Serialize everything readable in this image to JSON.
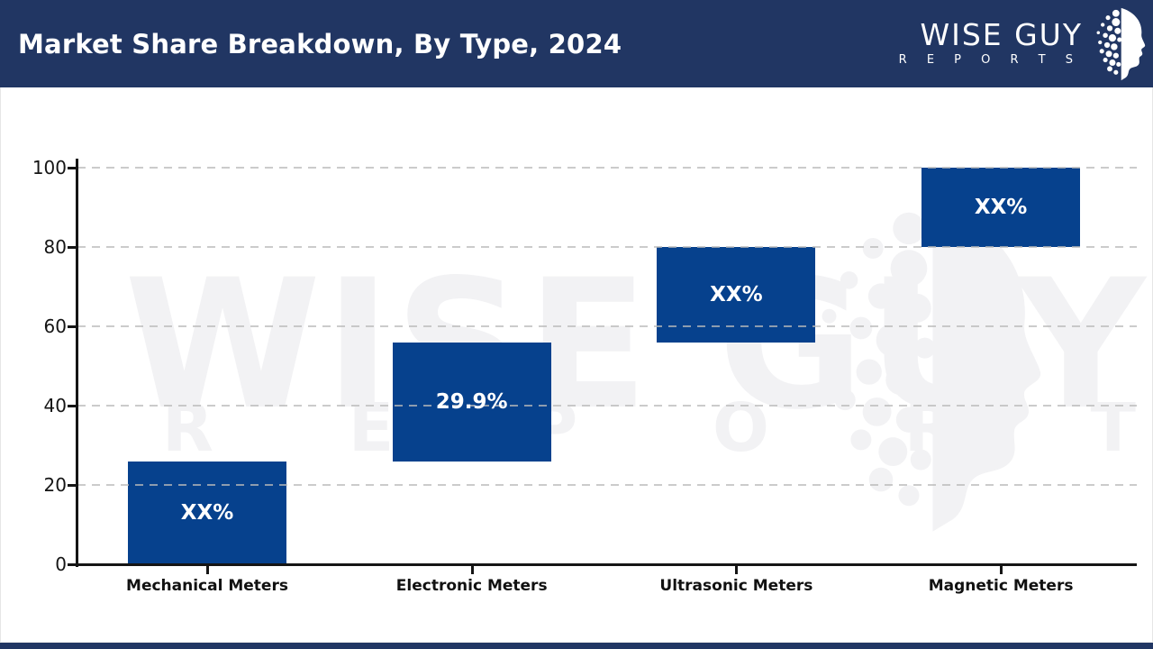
{
  "header": {
    "title": "Market Share Breakdown, By Type, 2024",
    "logo": {
      "name": "Wise Guy Reports",
      "line1": "WISE GUY",
      "line2": "R E P O R T S"
    }
  },
  "watermark": {
    "line1": "WISE GUY",
    "line2": "R E P O R T S"
  },
  "colors": {
    "header_bg": "#213663",
    "footer_bg": "#213663",
    "bar_fill": "#06418D",
    "bar_label_text": "#FFFFFF",
    "grid_line": "#D9D9D9",
    "axis": "#151515",
    "watermark": "#F2F2F4",
    "title_text": "#FFFFFF"
  },
  "chart_data": {
    "type": "bar",
    "variant": "waterfall",
    "title": "Market Share Breakdown, By Type, 2024",
    "xlabel": "",
    "ylabel": "",
    "categories": [
      "Mechanical Meters",
      "Electronic Meters",
      "Ultrasonic Meters",
      "Magnetic Meters"
    ],
    "segments": [
      {
        "start": 0,
        "end": 26,
        "label": "XX%"
      },
      {
        "start": 26,
        "end": 55.9,
        "label": "29.9%"
      },
      {
        "start": 55.9,
        "end": 80,
        "label": "XX%"
      },
      {
        "start": 80,
        "end": 100,
        "label": "XX%"
      }
    ],
    "values_implied": [
      26,
      29.9,
      24.1,
      20
    ],
    "yticks": [
      0,
      20,
      40,
      60,
      80,
      100
    ],
    "ylim": [
      0,
      102
    ],
    "grid": "horizontal-dashed",
    "legend": "none"
  }
}
